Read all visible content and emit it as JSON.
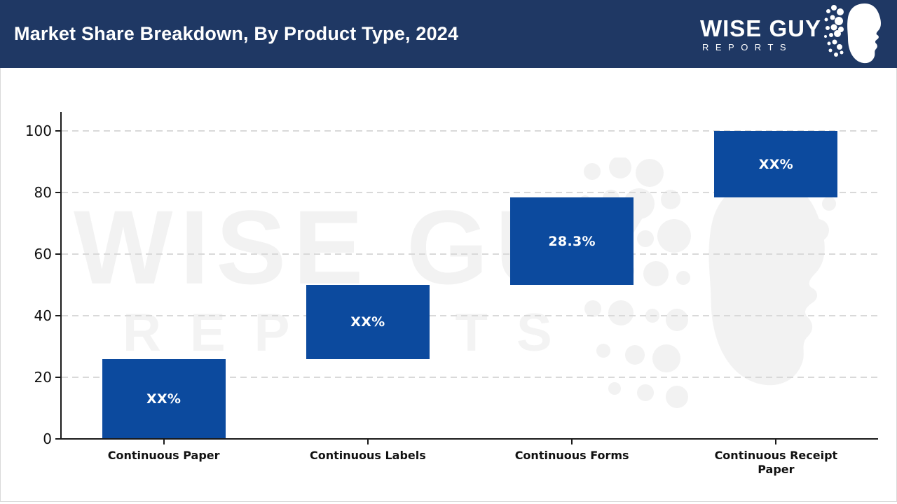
{
  "header": {
    "title": "Market Share Breakdown, By Product Type, 2024",
    "bg_color": "#1F3864",
    "logo": {
      "line1": "WISE GUY",
      "line2": "REPORTS",
      "face_icon": "face-profile-dots-icon"
    }
  },
  "watermark": {
    "line1": "WISE GUY",
    "line2": "R E P O R T S",
    "color": "#F2F2F2",
    "face_icon": "face-profile-dots-icon"
  },
  "chart_data": {
    "type": "bar",
    "subtype": "floating-waterfall-segments",
    "title": "Market Share Breakdown, By Product Type, 2024",
    "categories": [
      "Continuous Paper",
      "Continuous Labels",
      "Continuous Forms",
      "Continuous Receipt Paper"
    ],
    "bars": [
      {
        "category": "Continuous Paper",
        "start": 0,
        "end": 26,
        "label": "XX%"
      },
      {
        "category": "Continuous Labels",
        "start": 26,
        "end": 50,
        "label": "XX%"
      },
      {
        "category": "Continuous Forms",
        "start": 50,
        "end": 78.3,
        "label": "28.3%"
      },
      {
        "category": "Continuous Receipt Paper",
        "start": 78.3,
        "end": 100,
        "label": "XX%"
      }
    ],
    "yticks": [
      0,
      20,
      40,
      60,
      80,
      100
    ],
    "ylim": [
      0,
      106
    ],
    "xlabel": "",
    "ylabel": "",
    "grid": "horizontal-dashed",
    "legend": "none",
    "bar_color": "#0C4A9E",
    "bar_label_color": "#FFFFFF",
    "axis_color": "#1A1A1A",
    "grid_color": "#D9D9D9"
  }
}
